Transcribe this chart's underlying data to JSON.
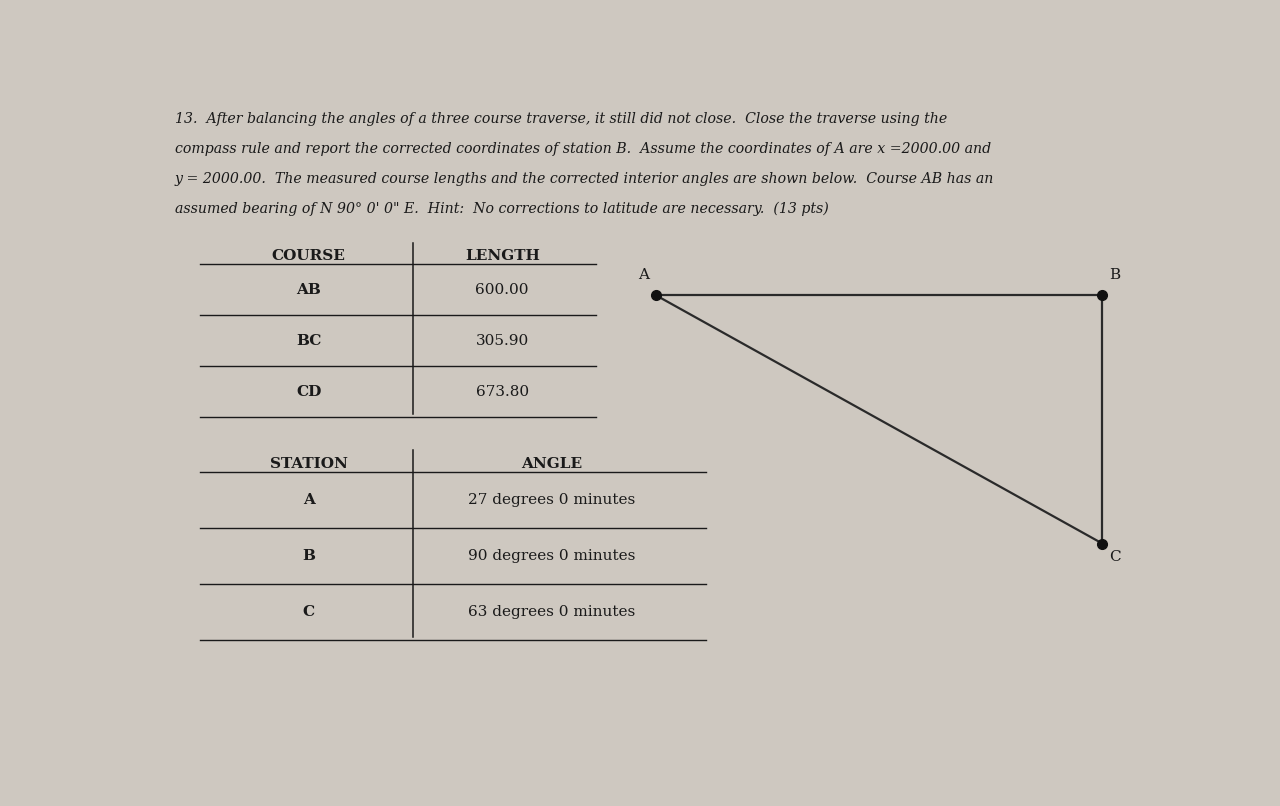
{
  "title_line1": "13.  After balancing the angles of a three course traverse, it still did not close.  Close the traverse using the",
  "title_line2": "compass rule and report the corrected coordinates of station B.  Assume the coordinates of A are x =2000.00 and",
  "title_line3": "y = 2000.00.  The measured course lengths and the corrected interior angles are shown below.  Course AB has an",
  "title_line4": "assumed bearing of N 90° 0' 0\" E.  Hint:  No corrections to latitude are necessary.  (13 pts)",
  "course_header": [
    "COURSE",
    "LENGTH"
  ],
  "course_data": [
    [
      "AB",
      "600.00"
    ],
    [
      "BC",
      "305.90"
    ],
    [
      "CD",
      "673.80"
    ]
  ],
  "station_header": [
    "STATION",
    "ANGLE"
  ],
  "station_data": [
    [
      "A",
      "27 degrees 0 minutes"
    ],
    [
      "B",
      "90 degrees 0 minutes"
    ],
    [
      "C",
      "63 degrees 0 minutes"
    ]
  ],
  "bg_color": "#cec8c0",
  "text_color": "#1a1a1a",
  "diagram": {
    "A": [
      0.5,
      0.68
    ],
    "B": [
      0.95,
      0.68
    ],
    "C": [
      0.95,
      0.28
    ]
  },
  "title_fontsize": 10.2,
  "table_fontsize": 11.0
}
